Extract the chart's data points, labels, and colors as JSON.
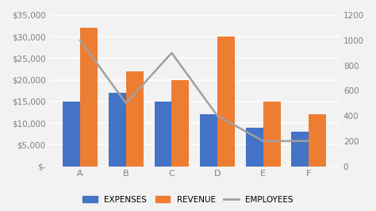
{
  "categories": [
    "A",
    "B",
    "C",
    "D",
    "E",
    "F"
  ],
  "expenses": [
    15000,
    17000,
    15000,
    12000,
    9000,
    8000
  ],
  "revenue": [
    32000,
    22000,
    20000,
    30000,
    15000,
    12000
  ],
  "employees": [
    1000,
    500,
    900,
    400,
    200,
    200
  ],
  "bar_color_expenses": "#4472C4",
  "bar_color_revenue": "#ED7D31",
  "line_color_employees": "#A0A0A0",
  "ylim_left": [
    0,
    35000
  ],
  "ylim_right": [
    0,
    1200
  ],
  "yticks_left": [
    0,
    5000,
    10000,
    15000,
    20000,
    25000,
    30000,
    35000
  ],
  "yticks_right": [
    0,
    200,
    400,
    600,
    800,
    1000,
    1200
  ],
  "background_color": "#F2F2F2",
  "plot_background": "#F2F2F2",
  "legend_labels": [
    "EXPENSES",
    "REVENUE",
    "EMPLOYEES"
  ],
  "bar_width": 0.38,
  "grid_color": "#FFFFFF",
  "tick_color": "#808080",
  "spine_color": "#C0C0C0"
}
